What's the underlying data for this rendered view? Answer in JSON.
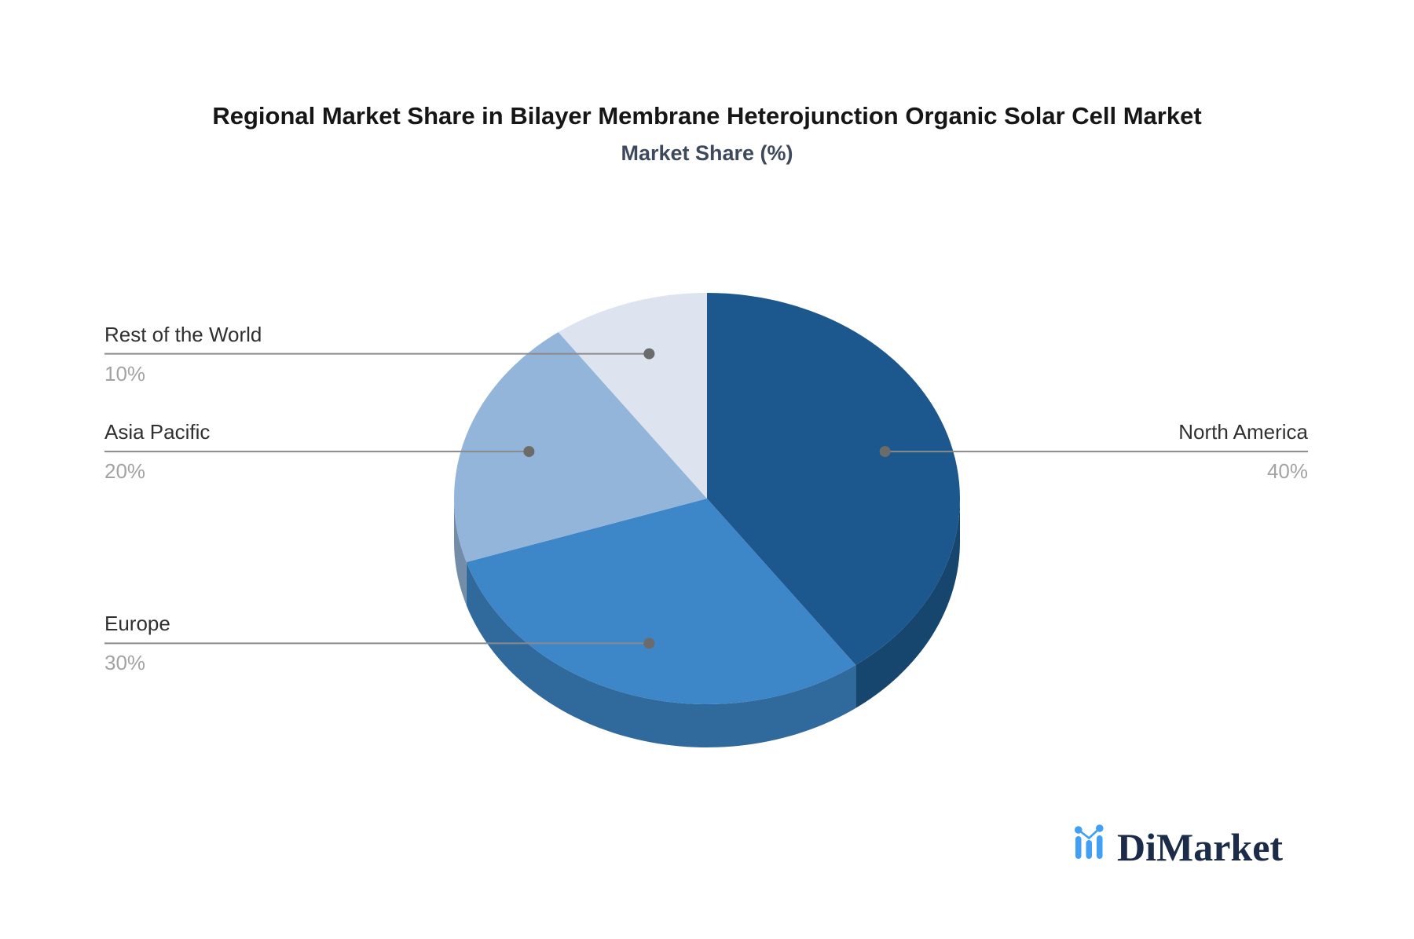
{
  "header": {
    "title": "Regional Market Share in Bilayer Membrane Heterojunction Organic Solar Cell Market",
    "subtitle": "Market Share (%)"
  },
  "chart_data": {
    "type": "pie",
    "title": "Regional Market Share in Bilayer Membrane Heterojunction Organic Solar Cell Market",
    "subtitle": "Market Share (%)",
    "unit": "%",
    "style": "3d-pie",
    "start_angle": "top",
    "direction": "clockwise",
    "legend": "callout-labels",
    "slices": [
      {
        "label": "North America",
        "value": 40,
        "display": "40%",
        "color": "#1C588D",
        "callout_side": "right"
      },
      {
        "label": "Europe",
        "value": 30,
        "display": "30%",
        "color": "#3D86C8",
        "callout_side": "left"
      },
      {
        "label": "Asia Pacific",
        "value": 20,
        "display": "20%",
        "color": "#93B5D9",
        "callout_side": "left"
      },
      {
        "label": "Rest of the World",
        "value": 10,
        "display": "10%",
        "color": "#DDE4F0",
        "callout_side": "left"
      }
    ]
  },
  "logo": {
    "text": "DiMarket",
    "icon": "bar-chart-trend-icon",
    "icon_color": "#41A0F5",
    "text_color": "#1C2B47"
  },
  "styles": {
    "background": "#FFFFFF",
    "title_color": "#161616",
    "subtitle_color": "#3E4A5B",
    "label_color": "#303030",
    "percent_color": "#A3A3A3",
    "leader_line_color": "#8A8A8A",
    "leader_dot_color": "#6B6B6B"
  }
}
